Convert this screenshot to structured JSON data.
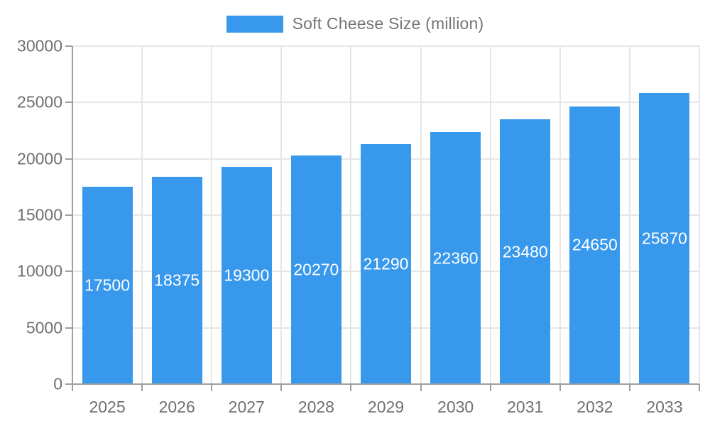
{
  "legend": {
    "label": "Soft Cheese Size (million)"
  },
  "chart_data": {
    "type": "bar",
    "title": "",
    "xlabel": "",
    "ylabel": "",
    "categories": [
      "2025",
      "2026",
      "2027",
      "2028",
      "2029",
      "2030",
      "2031",
      "2032",
      "2033"
    ],
    "series": [
      {
        "name": "Soft Cheese Size (million)",
        "values": [
          17500,
          18375,
          19300,
          20270,
          21290,
          22360,
          23480,
          24650,
          25870
        ]
      }
    ],
    "ylim": [
      0,
      30000
    ],
    "ytick_step": 5000,
    "yticks": [
      0,
      5000,
      10000,
      15000,
      20000,
      25000,
      30000
    ],
    "grid": true,
    "legend_position": "top-center",
    "value_labels": "inside-middle",
    "colors": {
      "bar": "#3899EC",
      "value_label_text": "#ffffff",
      "axis_line": "#9e9e9e",
      "gridline": "#e6e6e6",
      "tick_text": "#707070",
      "legend_text": "#757575",
      "background": "#ffffff"
    }
  }
}
